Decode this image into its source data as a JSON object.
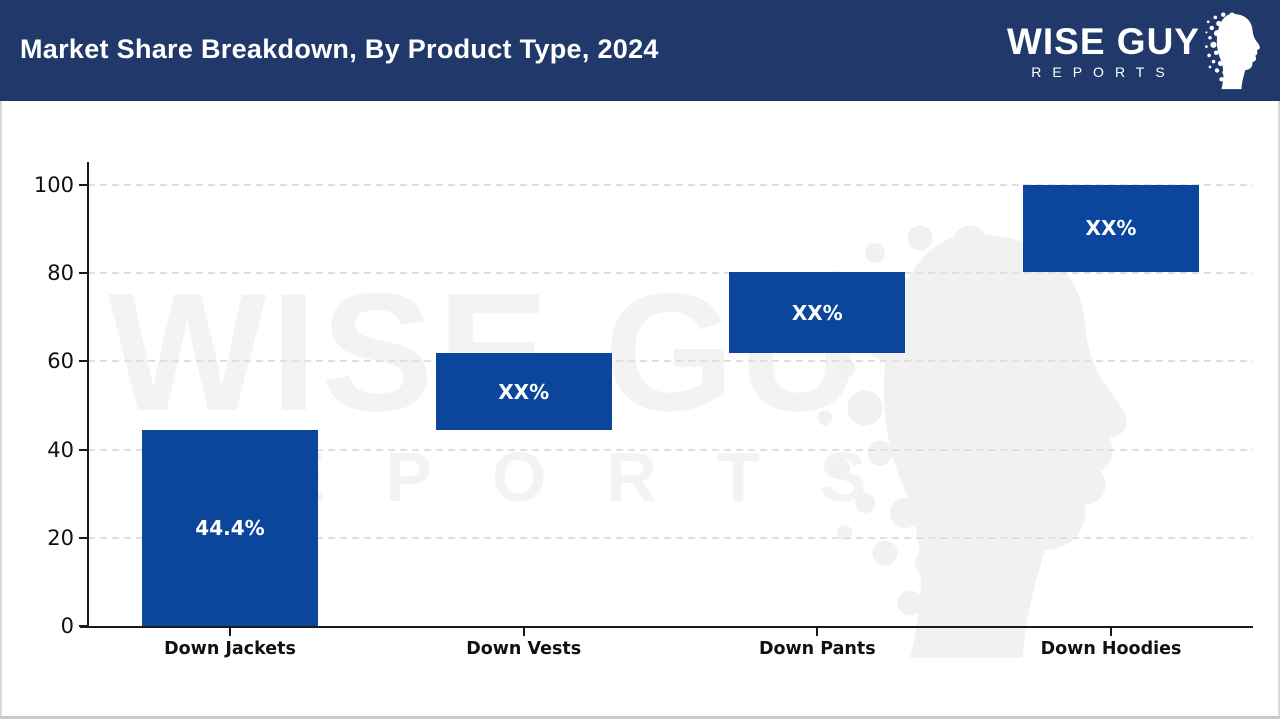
{
  "header": {
    "title": "Market Share Breakdown, By Product Type, 2024",
    "logo": {
      "line1": "WISE GUY",
      "line2": "REPORTS"
    }
  },
  "watermark": {
    "line1": "WISE GUY",
    "line2": "REPORTS"
  },
  "chart_data": {
    "type": "bar",
    "subtype": "waterfall",
    "title": "Market Share Breakdown, By Product Type, 2024",
    "categories": [
      "Down Jackets",
      "Down Vests",
      "Down Pants",
      "Down Hoodies"
    ],
    "segments": [
      {
        "category": "Down Jackets",
        "start": 0,
        "end": 44.4,
        "label": "44.4%"
      },
      {
        "category": "Down Vests",
        "start": 44.4,
        "end": 61.8,
        "label": "XX%"
      },
      {
        "category": "Down Pants",
        "start": 61.8,
        "end": 80.3,
        "label": "XX%"
      },
      {
        "category": "Down Hoodies",
        "start": 80.3,
        "end": 100,
        "label": "XX%"
      }
    ],
    "ylim": [
      0,
      100
    ],
    "yticks": [
      0,
      20,
      40,
      60,
      80,
      100
    ],
    "grid": "horizontal-dashed",
    "legend": "none",
    "colors": {
      "bar": "#0b469c",
      "bar_label": "#ffffff",
      "axis": "#1a1a1a",
      "gridline": "#e0e0e0",
      "header_bg": "#20396a",
      "watermark": "#f3f3f3"
    }
  }
}
